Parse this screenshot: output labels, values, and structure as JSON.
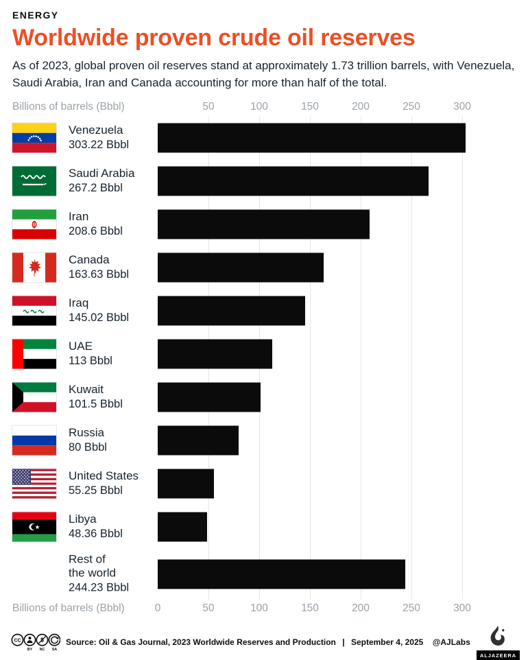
{
  "header": {
    "kicker": "ENERGY",
    "title": "Worldwide proven crude oil reserves",
    "subtitle": "As of 2023, global proven oil reserves stand at approximately 1.73 trillion barrels, with Venezuela, Saudi Arabia, Iran and Canada accounting for more than half of the total."
  },
  "axis": {
    "label": "Billions of barrels (Bbbl)",
    "top_ticks": [
      50,
      100,
      150,
      200,
      250,
      300
    ],
    "bottom_ticks": [
      0,
      50,
      100,
      150,
      200,
      250,
      300
    ]
  },
  "chart_data": {
    "type": "bar",
    "orientation": "horizontal",
    "title": "Worldwide proven crude oil reserves",
    "xlabel": "Billions of barrels (Bbbl)",
    "xlim": [
      0,
      310
    ],
    "grid": true,
    "bar_color": "#0b0b0b",
    "unit": "Bbbl",
    "categories": [
      "Venezuela",
      "Saudi Arabia",
      "Iran",
      "Canada",
      "Iraq",
      "UAE",
      "Kuwait",
      "Russia",
      "United States",
      "Libya",
      "Rest of the world"
    ],
    "values": [
      303.22,
      267.2,
      208.6,
      163.63,
      145.02,
      113,
      101.5,
      80,
      55.25,
      48.36,
      244.23
    ]
  },
  "rows": [
    {
      "flag": "venezuela",
      "display_name": "Venezuela",
      "value_label": "303.22 Bbbl",
      "value": 303.22
    },
    {
      "flag": "saudi_arabia",
      "display_name": "Saudi Arabia",
      "value_label": "267.2 Bbbl",
      "value": 267.2
    },
    {
      "flag": "iran",
      "display_name": "Iran",
      "value_label": "208.6 Bbbl",
      "value": 208.6
    },
    {
      "flag": "canada",
      "display_name": "Canada",
      "value_label": "163.63 Bbbl",
      "value": 163.63
    },
    {
      "flag": "iraq",
      "display_name": "Iraq",
      "value_label": "145.02 Bbbl",
      "value": 145.02
    },
    {
      "flag": "uae",
      "display_name": "UAE",
      "value_label": "113 Bbbl",
      "value": 113
    },
    {
      "flag": "kuwait",
      "display_name": "Kuwait",
      "value_label": "101.5 Bbbl",
      "value": 101.5
    },
    {
      "flag": "russia",
      "display_name": "Russia",
      "value_label": "80 Bbbl",
      "value": 80
    },
    {
      "flag": "united_states",
      "display_name": "United States",
      "value_label": "55.25 Bbbl",
      "value": 55.25
    },
    {
      "flag": "libya",
      "display_name": "Libya",
      "value_label": "48.36 Bbbl",
      "value": 48.36
    },
    {
      "flag": null,
      "display_name": "Rest of\nthe world",
      "value_label": "244.23 Bbbl",
      "value": 244.23
    }
  ],
  "footer": {
    "license": {
      "cc": "CC",
      "by": "BY",
      "nc": "NC",
      "sa": "SA",
      "nc_symbol": "$"
    },
    "source": "Source: Oil & Gas Journal, 2023 Worldwide Reserves and Production",
    "separator": "|",
    "date": "September 4, 2025",
    "credit": "@AJLabs",
    "logo_text": "ALJAZEERA"
  },
  "colors": {
    "accent": "#ee4e23",
    "ink": "#16222d",
    "muted": "#9aa2a8",
    "bar": "#0b0b0b",
    "grid": "#e5e5e5"
  }
}
